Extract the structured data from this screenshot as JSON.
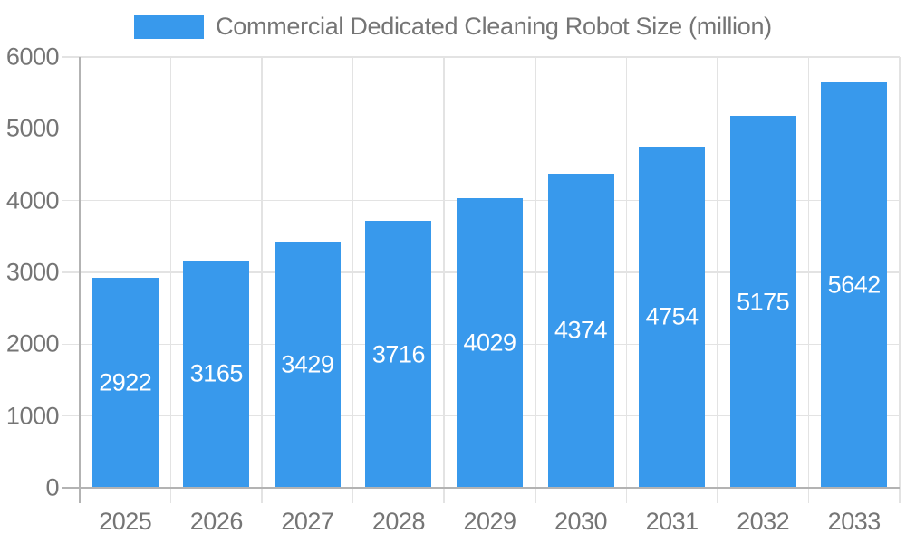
{
  "chart_data": {
    "type": "bar",
    "title": "Commercial Dedicated Cleaning Robot Size (million)",
    "legend": {
      "label": "Commercial Dedicated Cleaning Robot Size (million)",
      "position": "top",
      "swatch_color": "#3899ec"
    },
    "categories": [
      "2025",
      "2026",
      "2027",
      "2028",
      "2029",
      "2030",
      "2031",
      "2032",
      "2033"
    ],
    "values": [
      2922,
      3165,
      3429,
      3716,
      4029,
      4374,
      4754,
      5175,
      5642
    ],
    "value_labels": [
      "2922",
      "3165",
      "3429",
      "3716",
      "4029",
      "4374",
      "4754",
      "5175",
      "5642"
    ],
    "xlabel": "",
    "ylabel": "",
    "ylim": [
      0,
      6000
    ],
    "y_ticks": [
      0,
      1000,
      2000,
      3000,
      4000,
      5000,
      6000
    ],
    "y_tick_labels": [
      "0",
      "1000",
      "2000",
      "3000",
      "4000",
      "5000",
      "6000"
    ],
    "grid": true,
    "colors": {
      "bar": "#3899ec",
      "gridline": "#e3e3e3",
      "axis_line": "#b3b3b3",
      "tick_label": "#757575",
      "legend_text": "#757575",
      "bar_value_text": "#ffffff",
      "background": "#ffffff"
    }
  }
}
